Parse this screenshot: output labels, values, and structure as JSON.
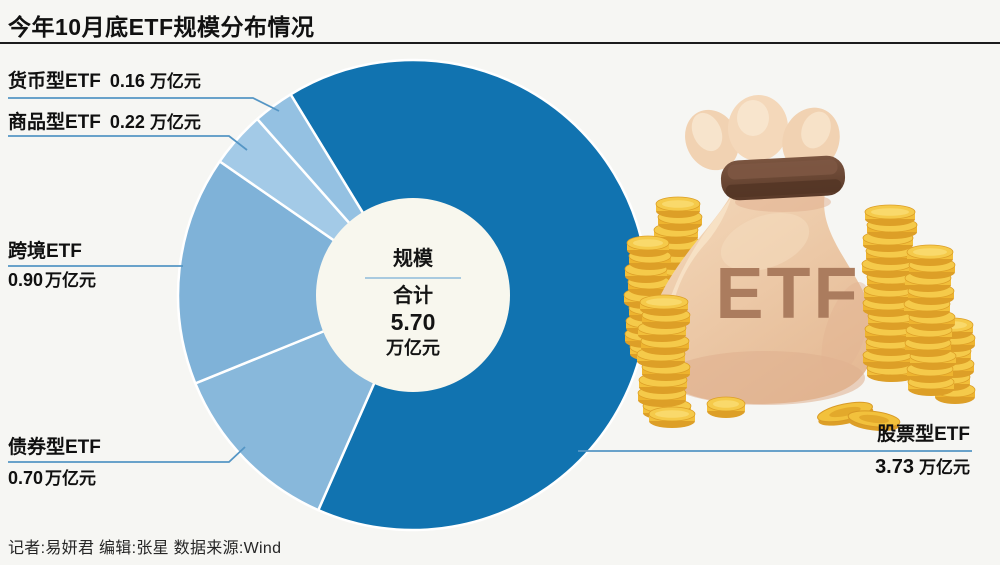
{
  "title": "今年10月底ETF规模分布情况",
  "chart_data": {
    "type": "pie",
    "subtype": "donut",
    "title": "今年10月底ETF规模分布情况",
    "unit": "万亿元",
    "total_label_value": "5.70",
    "start_angle_deg": -31.4,
    "direction": "clockwise",
    "segments": [
      {
        "label": "股票型ETF",
        "value": 3.73,
        "color": "#1173b0"
      },
      {
        "label": "债券型ETF",
        "value": 0.7,
        "color": "#88b8db"
      },
      {
        "label": "跨境ETF",
        "value": 0.9,
        "color": "#7fb2d8"
      },
      {
        "label": "商品型ETF",
        "value": 0.22,
        "color": "#a3cae7"
      },
      {
        "label": "货币型ETF",
        "value": 0.16,
        "color": "#94c1e2"
      }
    ],
    "center_label": {
      "line1": "规模",
      "line2": "合计",
      "value": "5.70",
      "unit": "万亿元"
    },
    "legend_position": "callout-labels"
  },
  "center": {
    "line1": "规模",
    "line2": "合计",
    "value": "5.70",
    "unit": "万亿元"
  },
  "labels": {
    "money": {
      "name": "货币型ETF",
      "amount": "0.16",
      "unit": "万亿元"
    },
    "commodity": {
      "name": "商品型ETF",
      "amount": "0.22",
      "unit": "万亿元"
    },
    "cross_border": {
      "name": "跨境ETF",
      "amount": "0.90",
      "unit": "万亿元"
    },
    "bond": {
      "name": "债券型ETF",
      "amount": "0.70",
      "unit": "万亿元"
    },
    "stock": {
      "name": "股票型ETF",
      "amount": "3.73",
      "unit": "万亿元"
    }
  },
  "illustration": {
    "bag_label": "ETF"
  },
  "footer": {
    "text": "记者:易妍君  编辑:张星  数据来源:Wind"
  },
  "colors": {
    "background": "#f6f6f3",
    "title_text": "#111111",
    "title_rule": "#1c1c1c",
    "label_text": "#101010",
    "leader_line": "#5596c5",
    "center_circle": "#f8f7ee",
    "center_divider": "#a9cadf",
    "coin_gold": "#f2bf3a",
    "coin_edge": "#dd9f27",
    "bag_tan": "#edc9a8",
    "bag_band_brown": "#6b4836",
    "bag_text_brown": "#ab7c5e"
  }
}
